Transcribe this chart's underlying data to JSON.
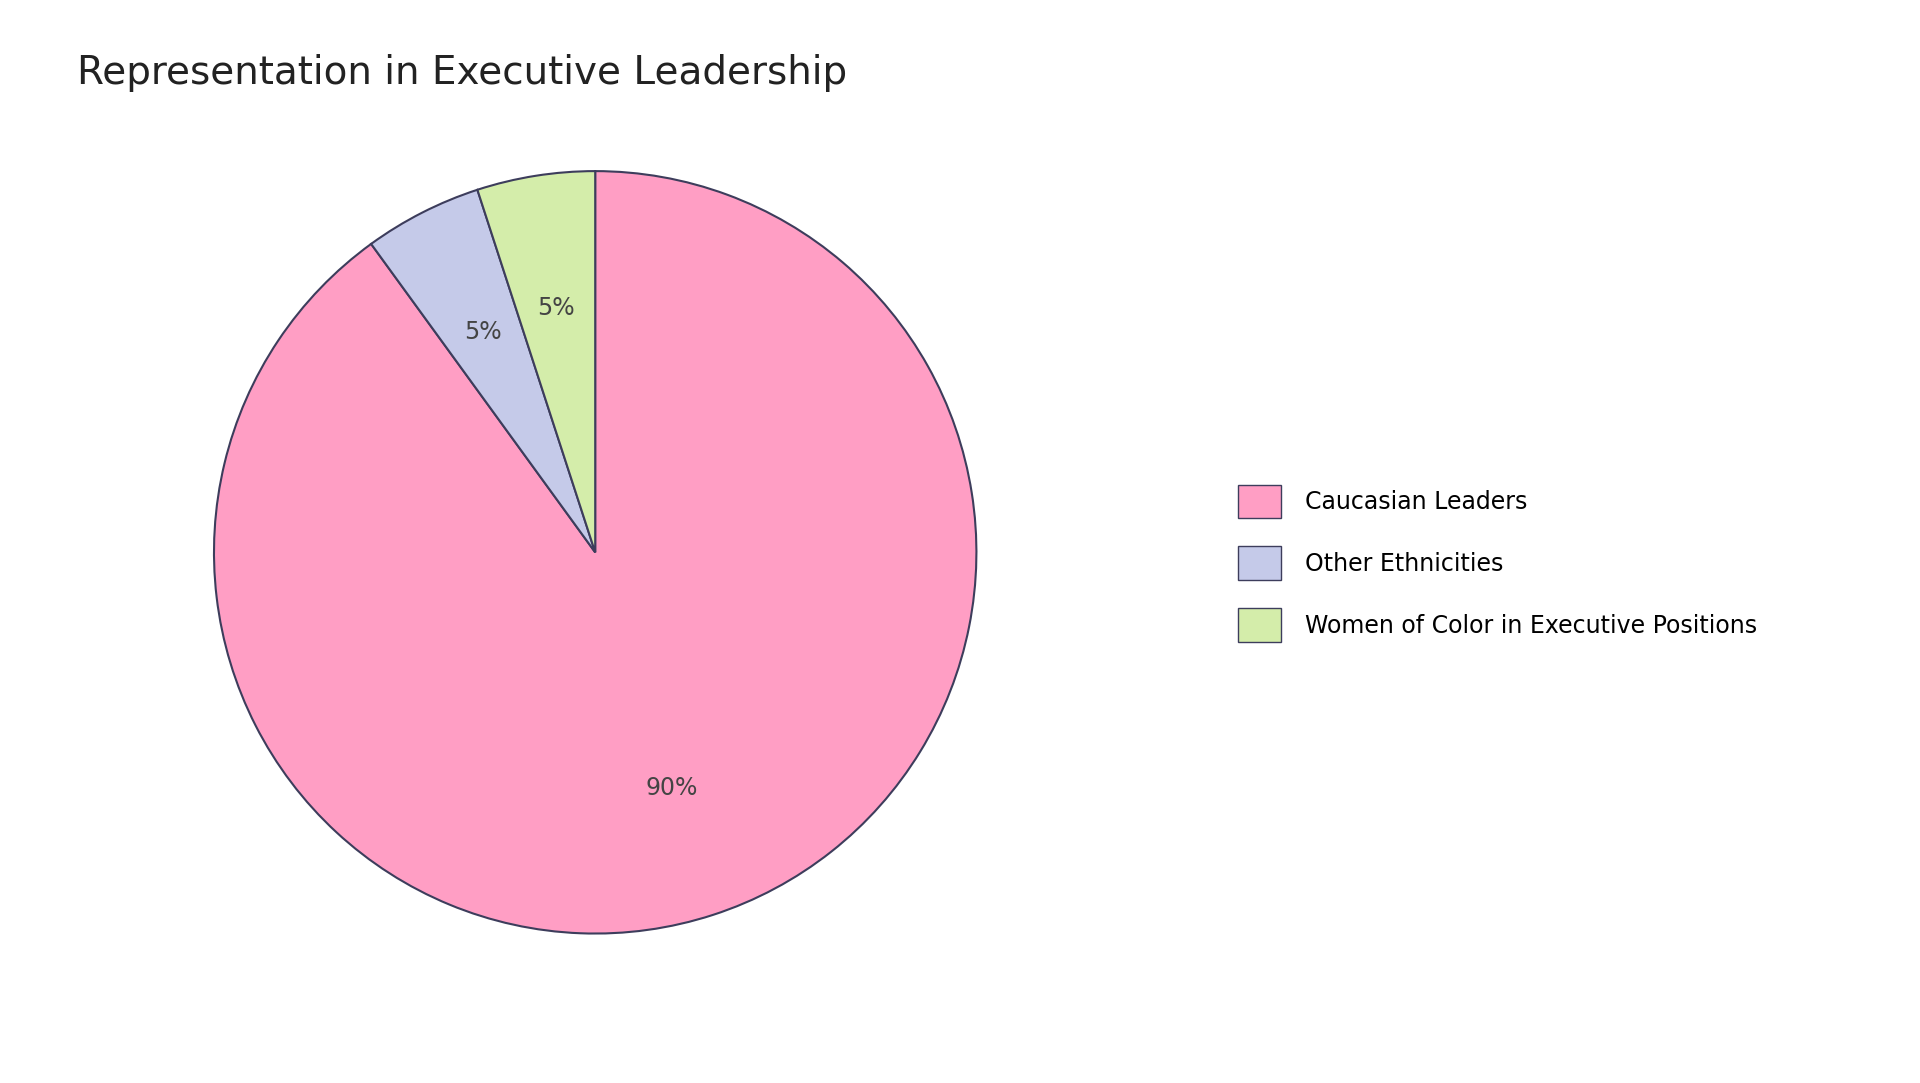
{
  "title": "Representation in Executive Leadership",
  "labels": [
    "Caucasian Leaders",
    "Other Ethnicities",
    "Women of Color in Executive Positions"
  ],
  "values": [
    90,
    5,
    5
  ],
  "colors": [
    "#FF9EC4",
    "#C5CAE9",
    "#D4EDAA"
  ],
  "edge_color": "#3D3D5C",
  "edge_width": 1.5,
  "startangle": 90,
  "background_color": "#FFFFFF",
  "title_fontsize": 28,
  "legend_fontsize": 17,
  "autopct_fontsize": 17,
  "pct_distance": 0.65
}
